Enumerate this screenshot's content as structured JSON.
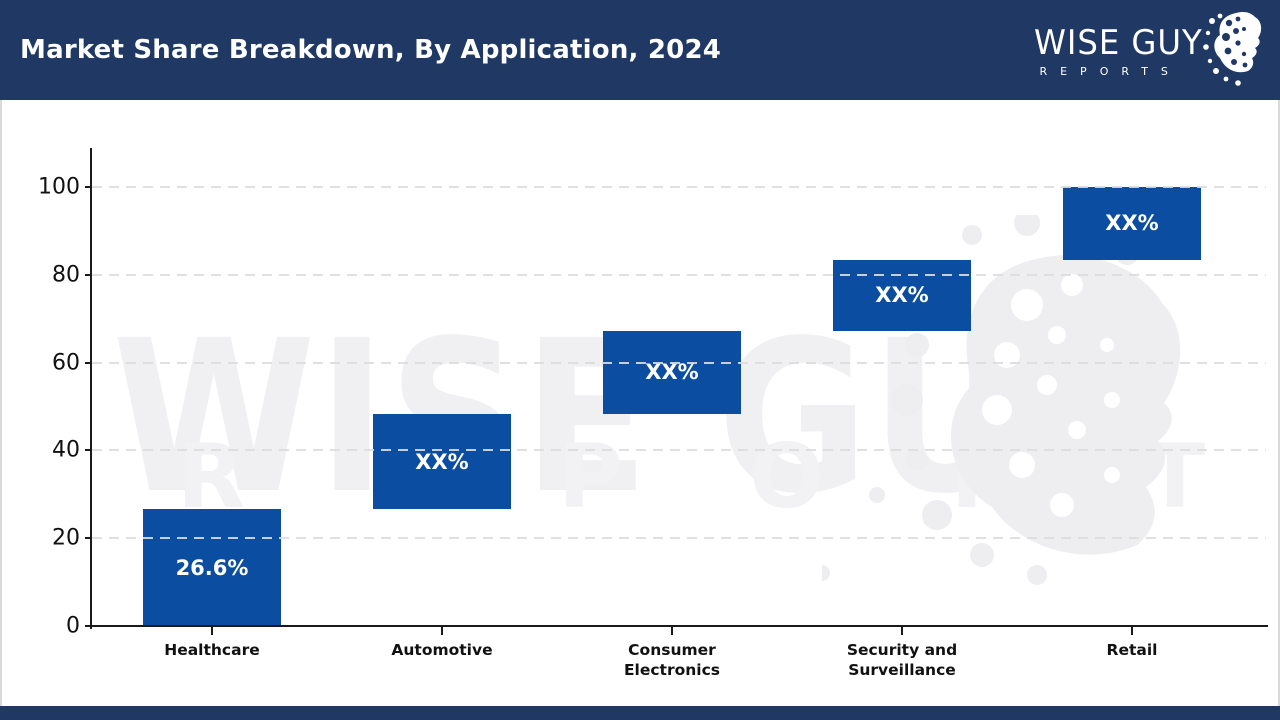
{
  "header": {
    "title": "Market Share Breakdown, By Application, 2024",
    "bg_color": "#1f3864",
    "logo": {
      "line1": "WISE GUY",
      "line2": "REPORTS"
    }
  },
  "watermark": {
    "line1": "WISE GUY",
    "line2": "R E P O R T S"
  },
  "footer": {
    "bg_color": "#1f3864"
  },
  "chart_data": {
    "type": "bar",
    "subtype": "waterfall",
    "title": "Market Share Breakdown, By Application, 2024",
    "xlabel": "",
    "ylabel": "",
    "categories": [
      "Healthcare",
      "Automotive",
      "Consumer\nElectronics",
      "Security and\nSurveillance",
      "Retail"
    ],
    "segments": [
      {
        "category": "Healthcare",
        "start": 0,
        "end": 26.6,
        "label": "26.6%"
      },
      {
        "category": "Automotive",
        "start": 26.6,
        "end": 48.3,
        "label": "XX%"
      },
      {
        "category": "Consumer Electronics",
        "start": 48.3,
        "end": 67.2,
        "label": "XX%"
      },
      {
        "category": "Security and Surveillance",
        "start": 67.2,
        "end": 83.4,
        "label": "XX%"
      },
      {
        "category": "Retail",
        "start": 83.4,
        "end": 100,
        "label": "XX%"
      }
    ],
    "y_ticks": [
      0,
      20,
      40,
      60,
      80,
      100
    ],
    "ylim": [
      0,
      108
    ],
    "bar_color": "#0b4da1",
    "grid": true,
    "grid_style": "dashed",
    "legend": false
  }
}
